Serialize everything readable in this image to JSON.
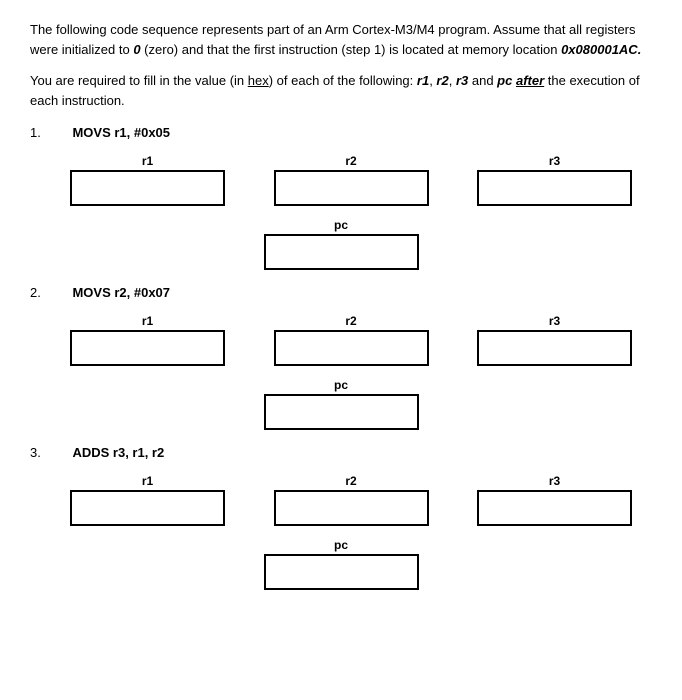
{
  "intro": {
    "para1_a": "The following code sequence represents part of an Arm Cortex-M3/M4 program. Assume that all registers were initialized to ",
    "para1_b": "0",
    "para1_c": " (zero) and that the first instruction (step 1) is located at memory location ",
    "para1_d": "0x080001AC.",
    "para2_a": "You are required to fill in the value (in ",
    "para2_b": "hex",
    "para2_c": ") of each of the following: ",
    "para2_d": "r1",
    "para2_e": ", ",
    "para2_f": "r2",
    "para2_g": ", ",
    "para2_h": "r3",
    "para2_i": " and ",
    "para2_j": "pc",
    "para2_k": " ",
    "para2_l": "after",
    "para2_m": " the execution of each instruction."
  },
  "steps": [
    {
      "num": "1.",
      "instruction": "MOVS r1, #0x05",
      "labels": {
        "r1": "r1",
        "r2": "r2",
        "r3": "r3",
        "pc": "pc"
      }
    },
    {
      "num": "2.",
      "instruction": "MOVS r2, #0x07",
      "labels": {
        "r1": "r1",
        "r2": "r2",
        "r3": "r3",
        "pc": "pc"
      }
    },
    {
      "num": "3.",
      "instruction": "ADDS r3, r1, r2",
      "labels": {
        "r1": "r1",
        "r2": "r2",
        "r3": "r3",
        "pc": "pc"
      }
    }
  ]
}
